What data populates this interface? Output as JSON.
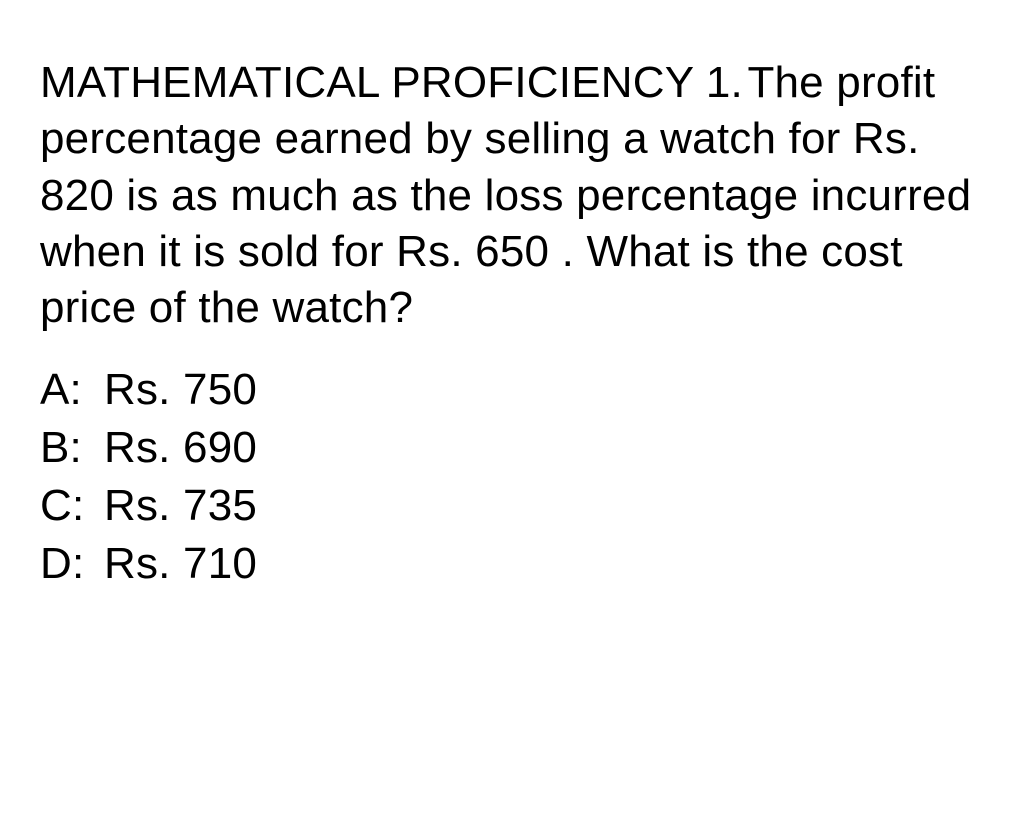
{
  "question": {
    "heading": "MATHEMATICAL PROFICIENCY 1.",
    "text": "The profit percentage earned by selling a watch for Rs. 820 is as much as the loss percentage incurred when it is sold for Rs. 650 . What is the cost price of the watch?",
    "heading_fontsize": 44,
    "body_fontsize": 44,
    "text_color": "#000000",
    "background_color": "#ffffff"
  },
  "options": [
    {
      "letter": "A:",
      "value": "Rs. 750"
    },
    {
      "letter": "B:",
      "value": "Rs. 690"
    },
    {
      "letter": "C:",
      "value": "Rs. 735"
    },
    {
      "letter": "D:",
      "value": "Rs. 710"
    }
  ],
  "options_fontsize": 44
}
